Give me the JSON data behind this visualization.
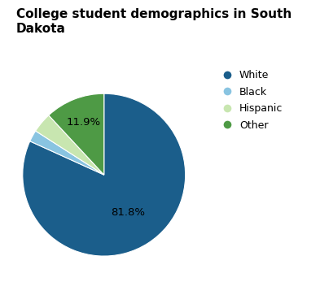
{
  "title": "College student demographics in South Dakota",
  "labels": [
    "White",
    "Black",
    "Hispanic",
    "Other"
  ],
  "values": [
    81.8,
    2.3,
    4.0,
    11.9
  ],
  "colors": [
    "#1b5e8b",
    "#89c4e1",
    "#c8e6b0",
    "#4e9a45"
  ],
  "title_fontsize": 11,
  "pct_fontsize": 9.5,
  "legend_fontsize": 9,
  "white_pct": "81.8%",
  "other_pct": "11.9%"
}
